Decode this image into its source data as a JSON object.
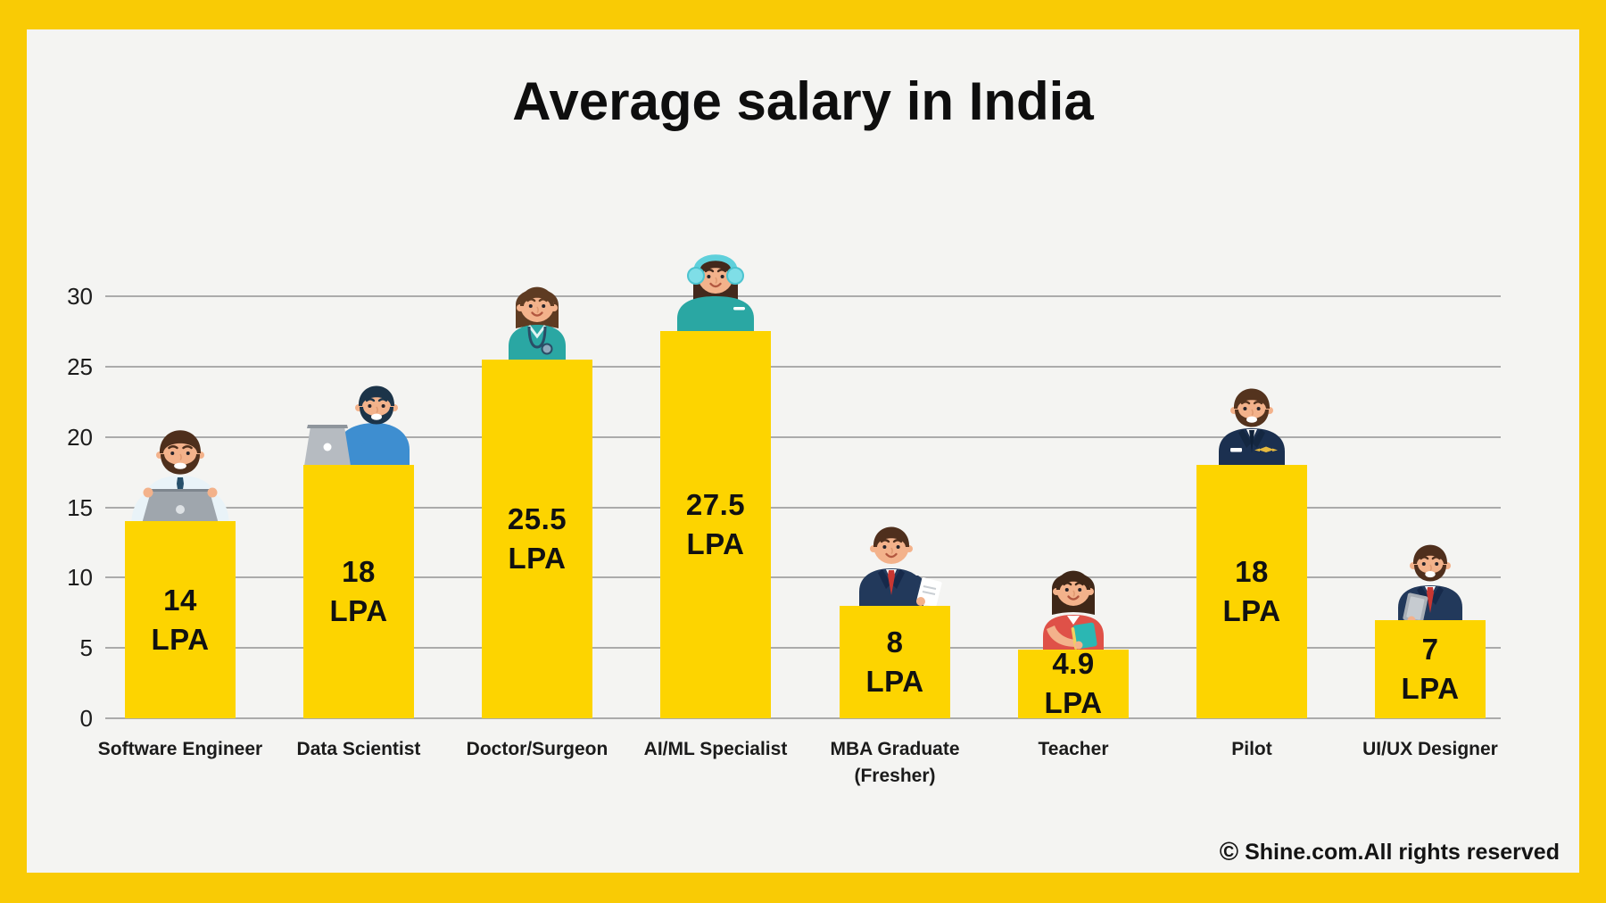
{
  "title": "Average salary in India",
  "footer": {
    "copyright_symbol": "©",
    "text": "Shine.com.All rights reserved"
  },
  "colors": {
    "frame": "#F9CB05",
    "panel_bg": "#F4F4F2",
    "bar": "#FDD400",
    "grid": "#ABABAB",
    "text": "#111111"
  },
  "chart_data": {
    "type": "bar",
    "title": "Average salary in India",
    "unit": "LPA",
    "categories": [
      "Software Engineer",
      "Data Scientist",
      "Doctor/Surgeon",
      "AI/ML Specialist",
      "MBA Graduate (Fresher)",
      "Teacher",
      "Pilot",
      "UI/UX Designer"
    ],
    "category_lines": [
      [
        "Software Engineer"
      ],
      [
        "Data Scientist"
      ],
      [
        "Doctor/Surgeon"
      ],
      [
        "AI/ML Specialist"
      ],
      [
        "MBA Graduate",
        "(Fresher)"
      ],
      [
        "Teacher"
      ],
      [
        "Pilot"
      ],
      [
        "UI/UX Designer"
      ]
    ],
    "values": [
      14,
      18,
      25.5,
      27.5,
      8,
      4.9,
      18,
      7
    ],
    "value_labels": [
      [
        "14",
        "LPA"
      ],
      [
        "18",
        "LPA"
      ],
      [
        "25.5",
        "LPA"
      ],
      [
        "27.5",
        "LPA"
      ],
      [
        "8",
        "LPA"
      ],
      [
        "4.9",
        "LPA"
      ],
      [
        "18",
        "LPA"
      ],
      [
        "7",
        "LPA"
      ]
    ],
    "figures": [
      "software-engineer",
      "data-scientist",
      "doctor-surgeon",
      "ai-ml-specialist",
      "mba-graduate",
      "teacher",
      "pilot",
      "ui-ux-designer"
    ],
    "ylabel": "",
    "xlabel": "",
    "yticks": [
      0,
      5,
      10,
      15,
      20,
      25,
      30
    ],
    "ylim": [
      0,
      30
    ],
    "grid": true,
    "legend": false,
    "bar_color": "#FDD400"
  }
}
